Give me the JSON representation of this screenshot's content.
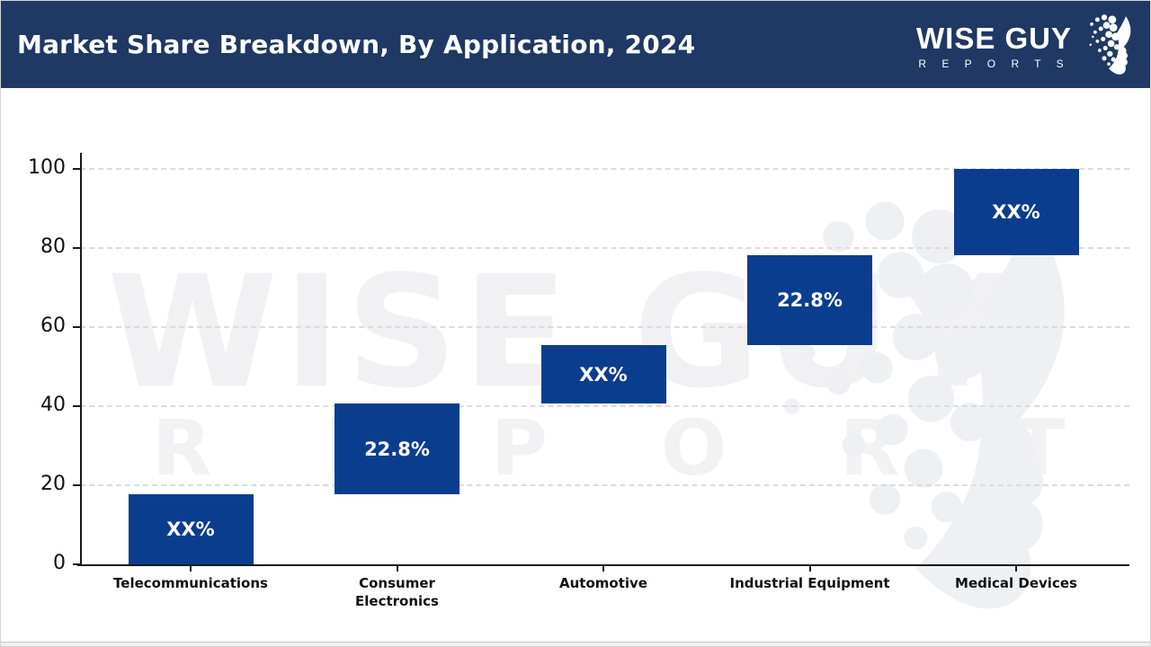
{
  "header": {
    "title": "Market Share Breakdown, By Application, 2024",
    "bg_color": "#1f3864",
    "logo": {
      "name": "WISE GUY",
      "tagline": "R E P O R T S"
    }
  },
  "watermark": {
    "name": "WISE GUY",
    "tagline": "R E P O R T S"
  },
  "chart_data": {
    "type": "bar",
    "variant": "waterfall",
    "title": "Market Share Breakdown, By Application, 2024",
    "categories": [
      "Telecommunications",
      "Consumer Electronics",
      "Automotive",
      "Industrial Equipment",
      "Medical Devices"
    ],
    "segments": [
      {
        "category": "Telecommunications",
        "start": 0,
        "end": 17.8,
        "label": "XX%"
      },
      {
        "category": "Consumer Electronics",
        "start": 17.8,
        "end": 40.6,
        "label": "22.8%"
      },
      {
        "category": "Automotive",
        "start": 40.6,
        "end": 55.4,
        "label": "XX%"
      },
      {
        "category": "Industrial Equipment",
        "start": 55.4,
        "end": 78.2,
        "label": "22.8%"
      },
      {
        "category": "Medical Devices",
        "start": 78.2,
        "end": 100,
        "label": "XX%"
      }
    ],
    "ylim": [
      0,
      100
    ],
    "yticks": [
      0,
      20,
      40,
      60,
      80,
      100
    ],
    "xlabel": "",
    "ylabel": "",
    "legend": "none",
    "grid": {
      "horizontal": true,
      "style": "dashed",
      "color": "#dcdcdc"
    },
    "bar_color": "#0b3d8f",
    "bar_label_color": "#ffffff",
    "axis_color": "#1a1a1a"
  }
}
